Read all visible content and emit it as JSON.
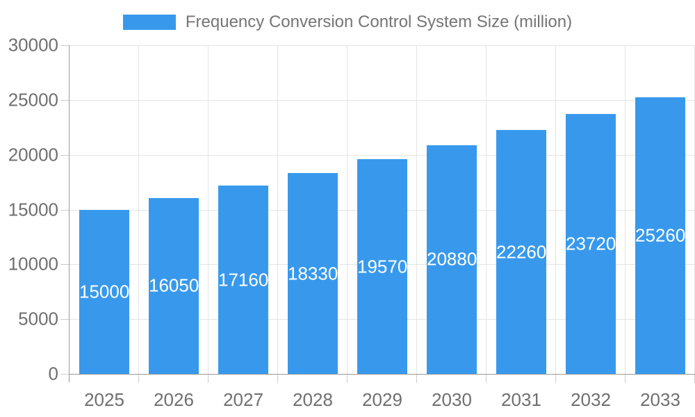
{
  "chart_data": {
    "type": "bar",
    "title": "Frequency Conversion Control System Size (million)",
    "legend": {
      "position": "top",
      "entries": [
        "Frequency Conversion Control System Size (million)"
      ]
    },
    "categories": [
      "2025",
      "2026",
      "2027",
      "2028",
      "2029",
      "2030",
      "2031",
      "2032",
      "2033"
    ],
    "values": [
      15000,
      16050,
      17160,
      18330,
      19570,
      20880,
      22260,
      23720,
      25260
    ],
    "value_labels_shown": true,
    "value_label_position": "inside-center",
    "xlabel": "",
    "ylabel": "",
    "ylim": [
      0,
      30000
    ],
    "yticks": [
      0,
      5000,
      10000,
      15000,
      20000,
      25000,
      30000
    ],
    "grid": true,
    "colors": {
      "bar": "#3899EC",
      "grid": "#E4E4E4",
      "axis": "#999999",
      "tick": "#CCCCCC",
      "axis_text": "#6F6F6F",
      "legend_text": "#757575",
      "value_label": "#FFFFFF",
      "background": "#FFFFFF"
    }
  }
}
